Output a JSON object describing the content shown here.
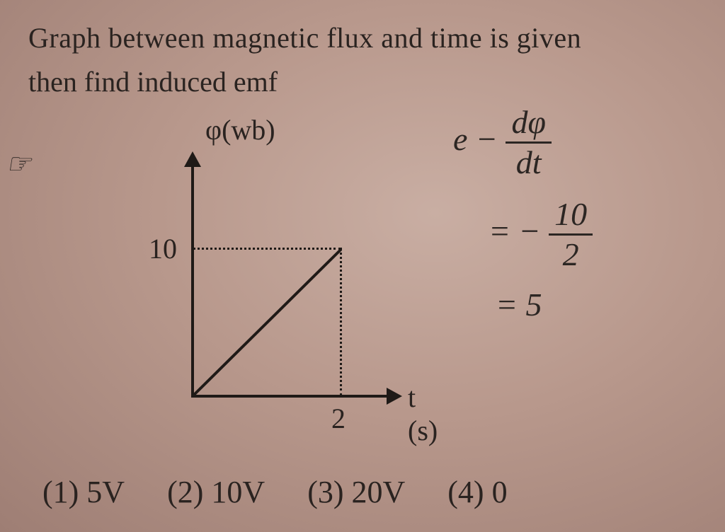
{
  "question": {
    "line1": "Graph between magnetic flux and time is given",
    "line2": "then find induced emf"
  },
  "graph": {
    "type": "line",
    "y_label": "φ(wb)",
    "x_label": "t (s)",
    "y_tick": "10",
    "x_tick": "2",
    "points": [
      [
        0,
        0
      ],
      [
        2,
        10
      ]
    ],
    "ylim": [
      0,
      12
    ],
    "xlim": [
      0,
      2.5
    ],
    "axis_color": "#1f1a17",
    "dash_color": "#1f1a17",
    "background_color": "#b89a8f",
    "line_width": 4
  },
  "handwriting": {
    "eq1_lhs": "e −",
    "eq1_num": "dφ",
    "eq1_den": "dt",
    "eq2_lhs": "= −",
    "eq2_num": "10",
    "eq2_den": "2",
    "eq3": "= 5",
    "doodle": "☞"
  },
  "options": {
    "o1": "(1)  5V",
    "o2": "(2)  10V",
    "o3": "(3)  20V",
    "o4": "(4)  0"
  },
  "colors": {
    "text": "#2a2320",
    "bg": "#b89a8f"
  }
}
